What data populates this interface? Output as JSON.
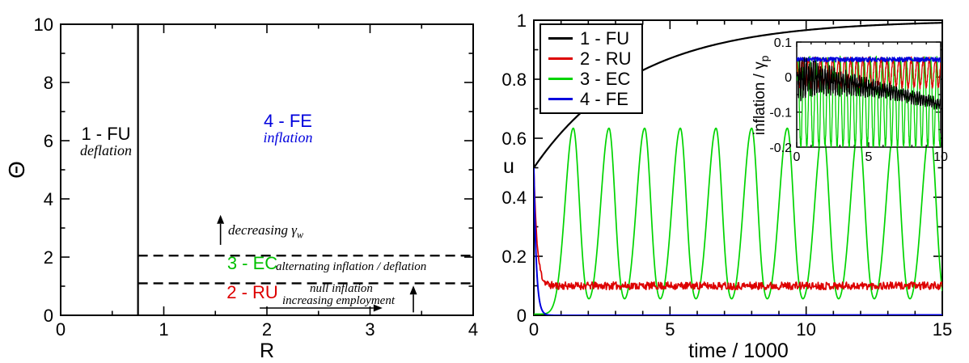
{
  "figure": {
    "background": "#ffffff"
  },
  "chart_data": [
    {
      "id": "phase-diagram",
      "type": "line",
      "title": "",
      "xlabel": "R",
      "ylabel": "Θ",
      "xlim": [
        0,
        4
      ],
      "ylim": [
        0,
        10
      ],
      "xticks": [
        0,
        1,
        2,
        3,
        4
      ],
      "xminor": [
        0.5,
        1.5,
        2.5,
        3.5
      ],
      "yticks": [
        0,
        2,
        4,
        6,
        8,
        10
      ],
      "yminor": [
        1,
        3,
        5,
        7,
        9
      ],
      "phase_boundaries": {
        "vertical_line_R": 0.75,
        "dashed_horizontal_lines_Theta": [
          2.05,
          1.1
        ]
      },
      "regions": [
        {
          "label": "1 - FU",
          "sublabel": "deflation",
          "color": "#000000",
          "x": 0.35,
          "y": 6.0
        },
        {
          "label": "4 - FE",
          "sublabel": "inflation",
          "color": "#0000dd",
          "x": 2.2,
          "y": 6.4
        },
        {
          "label": "3 - EC",
          "sublabel": "",
          "color": "#00c000",
          "x": 1.85,
          "y": 1.6
        },
        {
          "label": "2 - RU",
          "sublabel": "",
          "color": "#dd0000",
          "x": 1.85,
          "y": 0.6
        }
      ],
      "annotations": [
        {
          "text": "decreasing γ",
          "sub": "w",
          "x": 1.65,
          "y": 2.9
        },
        {
          "text": "alternating inflation / deflation",
          "x": 2.9,
          "y": 1.55
        },
        {
          "text": "null inflation",
          "x": 2.75,
          "y": 0.75
        },
        {
          "text": "increasing employment",
          "x": 2.8,
          "y": 0.35
        }
      ],
      "arrows": [
        {
          "x1": 1.55,
          "y1": 2.42,
          "x2": 1.55,
          "y2": 3.45
        },
        {
          "x1": 1.93,
          "y1": 0.25,
          "x2": 3.12,
          "y2": 0.25
        },
        {
          "x1": 3.42,
          "y1": 0.1,
          "x2": 3.42,
          "y2": 1.02
        }
      ]
    },
    {
      "id": "time-series",
      "type": "line",
      "title": "",
      "xlabel": "time / 1000",
      "ylabel": "u",
      "xlim": [
        0,
        15
      ],
      "ylim": [
        0,
        1
      ],
      "xticks": [
        0,
        5,
        10,
        15
      ],
      "xminor": [
        1,
        2,
        3,
        4,
        6,
        7,
        8,
        9,
        11,
        12,
        13,
        14
      ],
      "yticks": [
        0,
        0.2,
        0.4,
        0.6,
        0.8,
        1
      ],
      "yminor": [
        0.1,
        0.3,
        0.5,
        0.7,
        0.9
      ],
      "legend_position": "top-left",
      "legend": [
        {
          "label": "1 - FU",
          "color": "#000000"
        },
        {
          "label": "2 - RU",
          "color": "#dd0000"
        },
        {
          "label": "3 - EC",
          "color": "#00d400"
        },
        {
          "label": "4 - FE",
          "color": "#0000dd"
        }
      ],
      "series": [
        {
          "name": "3 - EC",
          "color": "#00d400",
          "model": "pulses",
          "base": 0.004,
          "peak": 0.63,
          "sigma_rise": 0.3,
          "sigma_fall": 0.22,
          "peak_times": [
            1.45,
            2.76,
            4.07,
            5.38,
            6.69,
            8.0,
            9.31,
            10.62,
            11.93,
            13.24,
            14.55
          ],
          "seed": 7
        },
        {
          "name": "2 - RU",
          "color": "#dd0000",
          "model": "decay_plateau",
          "u0": 0.5,
          "plateau": 0.1,
          "tau": 0.12,
          "noise": 0.013,
          "seed": 11
        },
        {
          "name": "4 - FE",
          "color": "#0000dd",
          "model": "decay_zero",
          "u0": 0.5,
          "tau": 0.09
        },
        {
          "name": "1 - FU",
          "color": "#000000",
          "model": "saturating",
          "u0": 0.5,
          "u_inf": 1.0,
          "tau": 3.7
        }
      ]
    },
    {
      "id": "inset-inflation",
      "type": "line",
      "title": "",
      "xlabel": "",
      "ylabel": "inflation / γ",
      "ylabel_sub": "p",
      "xlim": [
        0,
        10
      ],
      "ylim": [
        -0.2,
        0.1
      ],
      "xticks": [
        0,
        5,
        10
      ],
      "xminor": [
        1,
        2,
        3,
        4,
        6,
        7,
        8,
        9
      ],
      "yticks": [
        0.1,
        0,
        -0.1,
        -0.2
      ],
      "yminor": [
        0.05,
        -0.05,
        -0.15
      ],
      "series": [
        {
          "name": "3 - EC",
          "color": "#00d400",
          "model": "osc",
          "mean": -0.075,
          "amp": 0.125,
          "period": 0.42,
          "phase": 0.5,
          "noise": 0.01,
          "seed": 3
        },
        {
          "name": "2 - RU",
          "color": "#dd0000",
          "model": "osc",
          "mean": 0.012,
          "amp": 0.038,
          "period": 0.42,
          "phase": 2.0,
          "noise": 0.008,
          "seed": 5
        },
        {
          "name": "4 - FE",
          "color": "#0000dd",
          "model": "noisy_const",
          "mean": 0.05,
          "noise": 0.007,
          "seed": 9
        },
        {
          "name": "1 - FU",
          "color": "#000000",
          "model": "decaying_osc_noise",
          "mean_end": -0.078,
          "pow": 1.4,
          "noise_start": 0.045,
          "noise_end": 0.012,
          "tau": 3.5,
          "osc_period": 0.16,
          "seed": 13
        }
      ]
    }
  ]
}
